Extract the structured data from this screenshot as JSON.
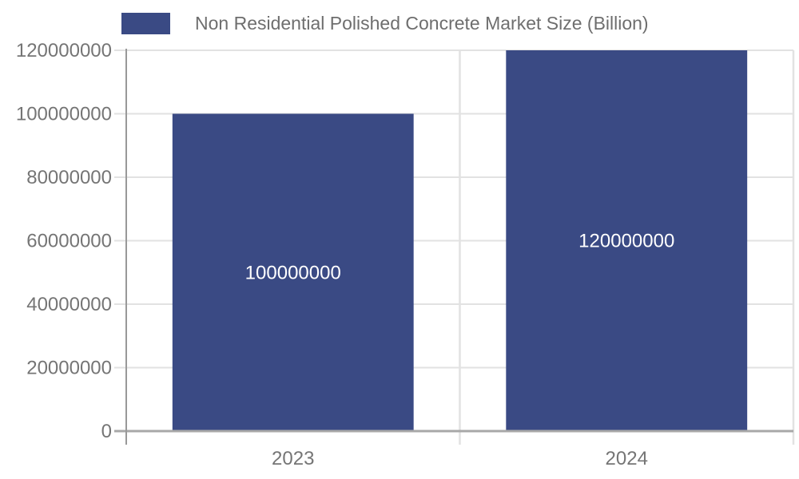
{
  "legend": {
    "label": "Non Residential Polished Concrete Market Size (Billion)"
  },
  "chart_data": {
    "type": "bar",
    "title": "Non Residential Polished Concrete Market Size (Billion)",
    "categories": [
      "2023",
      "2024"
    ],
    "series": [
      {
        "name": "Non Residential Polished Concrete Market Size (Billion)",
        "values": [
          100000000,
          120000000
        ]
      }
    ],
    "bar_value_labels": [
      "100000000",
      "120000000"
    ],
    "y_ticks": [
      0,
      20000000,
      40000000,
      60000000,
      80000000,
      100000000,
      120000000
    ],
    "y_tick_labels": [
      "0",
      "20000000",
      "40000000",
      "60000000",
      "80000000",
      "100000000",
      "120000000"
    ],
    "ylim": [
      0,
      120000000
    ],
    "xlabel": "",
    "ylabel": "",
    "grid": true,
    "legend_position": "top"
  },
  "colors": {
    "bar": "#3a4a84",
    "bar_label_text": "#ffffff",
    "grid_line": "#e2e2e2",
    "x_axis_line": "#a8a8a8",
    "y_axis_line": "#999999",
    "tick_label_text": "#757575",
    "legend_text": "#6e6e6e",
    "background": "#ffffff"
  }
}
